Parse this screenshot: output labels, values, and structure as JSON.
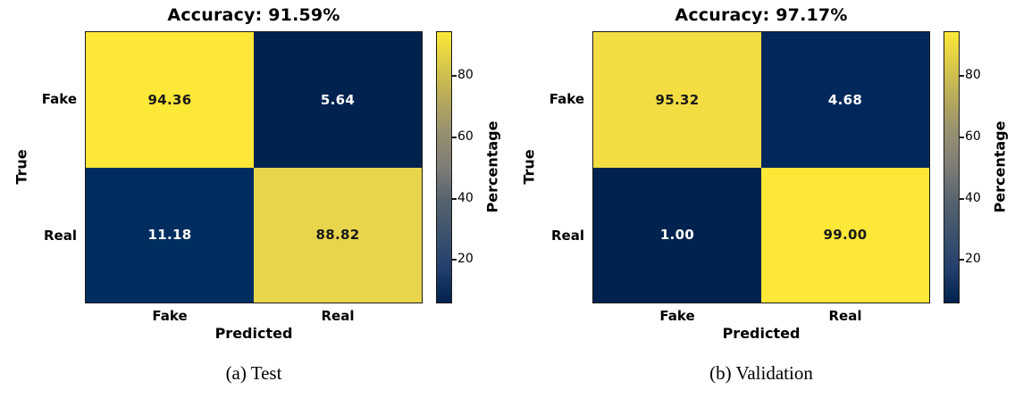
{
  "figure": {
    "background": "#ffffff",
    "text_color": "#000000"
  },
  "chart_data": [
    {
      "type": "heatmap",
      "panel": "a",
      "title": "Accuracy: 91.59%",
      "caption": "(a) Test",
      "xlabel": "Predicted",
      "ylabel": "True",
      "x_categories": [
        "Fake",
        "Real"
      ],
      "y_categories": [
        "Fake",
        "Real"
      ],
      "values": [
        [
          94.36,
          5.64
        ],
        [
          11.18,
          88.82
        ]
      ],
      "value_unit": "percent",
      "colormap": "cividis",
      "color_range": [
        5.64,
        94.36
      ],
      "colorbar": {
        "label": "Percentage",
        "ticks": [
          "80",
          "60",
          "40",
          "20"
        ]
      },
      "cells": [
        {
          "label": "94.36",
          "bg": "#fde737",
          "fg": "#1a1a1a"
        },
        {
          "label": "5.64",
          "bg": "#00224e",
          "fg": "#ffffff"
        },
        {
          "label": "11.18",
          "bg": "#002d60",
          "fg": "#ffffff"
        },
        {
          "label": "88.82",
          "bg": "#e9d54c",
          "fg": "#1a1a1a"
        }
      ]
    },
    {
      "type": "heatmap",
      "panel": "b",
      "title": "Accuracy: 97.17%",
      "caption": "(b) Validation",
      "xlabel": "Predicted",
      "ylabel": "True",
      "x_categories": [
        "Fake",
        "Real"
      ],
      "y_categories": [
        "Fake",
        "Real"
      ],
      "values": [
        [
          95.32,
          4.68
        ],
        [
          1.0,
          99.0
        ]
      ],
      "value_unit": "percent",
      "colormap": "cividis",
      "color_range": [
        1.0,
        99.0
      ],
      "colorbar": {
        "label": "Percentage",
        "ticks": [
          "80",
          "60",
          "40",
          "20"
        ]
      },
      "cells": [
        {
          "label": "95.32",
          "bg": "#f3dd43",
          "fg": "#1a1a1a"
        },
        {
          "label": "4.68",
          "bg": "#00285a",
          "fg": "#ffffff"
        },
        {
          "label": "1.00",
          "bg": "#00224e",
          "fg": "#ffffff"
        },
        {
          "label": "99.00",
          "bg": "#fde737",
          "fg": "#1a1a1a"
        }
      ]
    }
  ]
}
